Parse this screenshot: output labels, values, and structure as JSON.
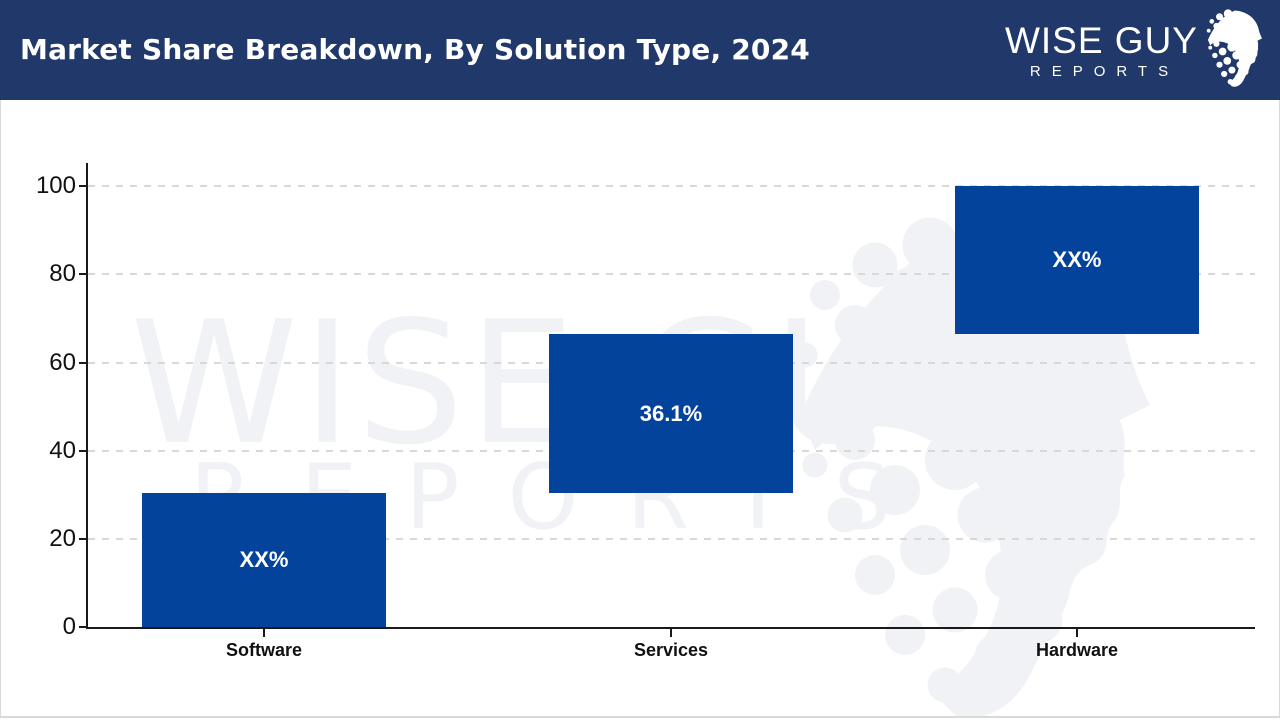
{
  "header": {
    "title": "Market Share Breakdown, By Solution Type, 2024",
    "logo": {
      "name": "WISE GUY",
      "subtitle": "REPORTS"
    }
  },
  "watermark": {
    "name": "WISE GUY",
    "subtitle": "REPORTS"
  },
  "colors": {
    "header_bg": "#20386A",
    "page_bg": "#FFFFFF",
    "bar": "#04439B",
    "bar_label": "#FFFFFF",
    "grid": "#D8D8D8",
    "axis": "#1A1A1A",
    "tick_text": "#111111",
    "watermark": "#F1F2F5",
    "edge": "#D9D9D9"
  },
  "chart_data": {
    "type": "bar",
    "variant": "waterfall",
    "title": "Market Share Breakdown, By Solution Type, 2024",
    "categories": [
      "Software",
      "Services",
      "Hardware"
    ],
    "segments": [
      {
        "category": "Software",
        "start": 0,
        "end": 30.3,
        "label": "XX%"
      },
      {
        "category": "Services",
        "start": 30.3,
        "end": 66.4,
        "label": "36.1%"
      },
      {
        "category": "Hardware",
        "start": 66.4,
        "end": 100,
        "label": "XX%"
      }
    ],
    "yticks": [
      0,
      20,
      40,
      60,
      80,
      100
    ],
    "ylim": [
      0,
      105.3
    ],
    "xlabel": "",
    "ylabel": "",
    "grid": "horizontal-dashed",
    "legend": "none"
  }
}
